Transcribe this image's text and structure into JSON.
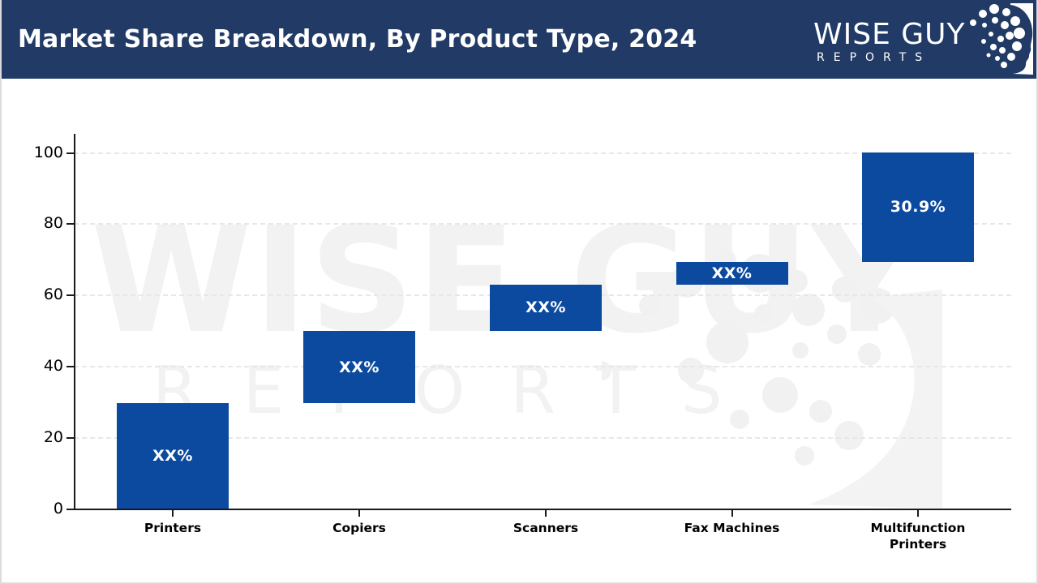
{
  "header": {
    "title": "Market Share Breakdown, By Product Type, 2024",
    "brand_line1": "WISE GUY",
    "brand_line2": "REPORTS"
  },
  "watermark": {
    "line1": "WISE GUY",
    "line2": "REPORTS"
  },
  "chart_data": {
    "type": "bar",
    "subtype": "waterfall",
    "title": "Market Share Breakdown, By Product Type, 2024",
    "xlabel": "",
    "ylabel": "",
    "categories": [
      "Printers",
      "Copiers",
      "Scanners",
      "Fax Machines",
      "Multifunction Printers"
    ],
    "segments": [
      {
        "category": "Printers",
        "start": 0,
        "end": 29.5,
        "value": 29.5,
        "label": "XX%"
      },
      {
        "category": "Copiers",
        "start": 29.5,
        "end": 49.9,
        "value": 20.4,
        "label": "XX%"
      },
      {
        "category": "Scanners",
        "start": 49.9,
        "end": 62.8,
        "value": 12.9,
        "label": "XX%"
      },
      {
        "category": "Fax Machines",
        "start": 62.8,
        "end": 69.1,
        "value": 6.3,
        "label": "XX%"
      },
      {
        "category": "Multifunction Printers",
        "start": 69.1,
        "end": 100,
        "value": 30.9,
        "label": "30.9%"
      }
    ],
    "yticks": [
      0,
      20,
      40,
      60,
      80,
      100
    ],
    "ylim": [
      0,
      105
    ],
    "grid": "horizontal-dashed",
    "legend": "none",
    "bar_color": "#0b4a9e",
    "bar_label_color": "#ffffff"
  },
  "colors": {
    "header_bg": "#213a66",
    "header_text": "#ffffff",
    "bar": "#0b4a9e",
    "axis": "#1a1a1a",
    "grid": "#e7e7e7",
    "watermark": "#f2f2f2",
    "border": "#dcdcdc"
  }
}
